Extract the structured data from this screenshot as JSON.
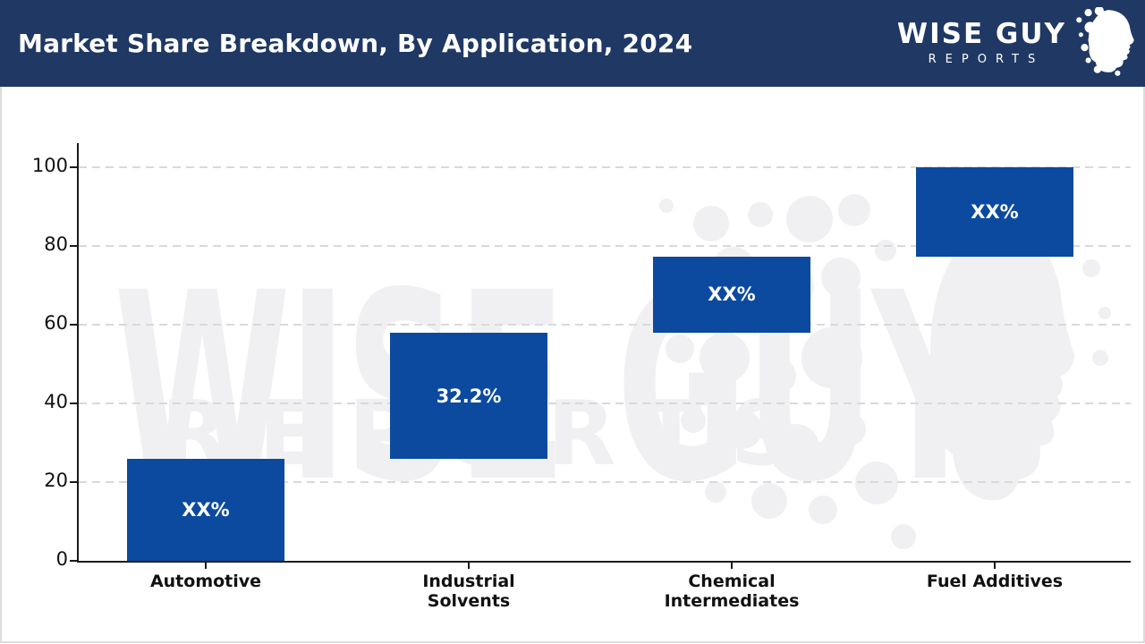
{
  "header": {
    "title": "Market Share Breakdown, By Application, 2024",
    "logo": {
      "name": "WISE GUY",
      "sub": "REPORTS"
    }
  },
  "watermark": {
    "line1": "WISE GUY",
    "line2": "REPORTS"
  },
  "colors": {
    "header_bg": "#1f3864",
    "bar_fill": "#0b4a9f",
    "bar_label_text": "#ffffff",
    "gridline": "#d9d9d9",
    "axis": "#1a1a1a",
    "tick_text": "#111111",
    "title_text": "#ffffff",
    "watermark": "#f0f0f2"
  },
  "chart_data": {
    "type": "bar",
    "subtype": "waterfall (floating cumulative segments)",
    "title": "Market Share Breakdown, By Application, 2024",
    "categories": [
      "Automotive",
      "Industrial\nSolvents",
      "Chemical\nIntermediates",
      "Fuel Additives"
    ],
    "bars": [
      {
        "category": "Automotive",
        "start": 0,
        "end": 25.8,
        "value": 25.8,
        "value_label": "XX%"
      },
      {
        "category": "Industrial Solvents",
        "start": 25.8,
        "end": 58.0,
        "value": 32.2,
        "value_label": "32.2%"
      },
      {
        "category": "Chemical Intermediates",
        "start": 58.0,
        "end": 77.3,
        "value": 19.3,
        "value_label": "XX%"
      },
      {
        "category": "Fuel Additives",
        "start": 77.3,
        "end": 100,
        "value": 22.7,
        "value_label": "XX%"
      }
    ],
    "ylim": [
      0,
      100
    ],
    "yticks": [
      0,
      20,
      40,
      60,
      80,
      100
    ],
    "xlabel": "",
    "ylabel": "",
    "grid": "horizontal dashed",
    "legend": "none"
  }
}
